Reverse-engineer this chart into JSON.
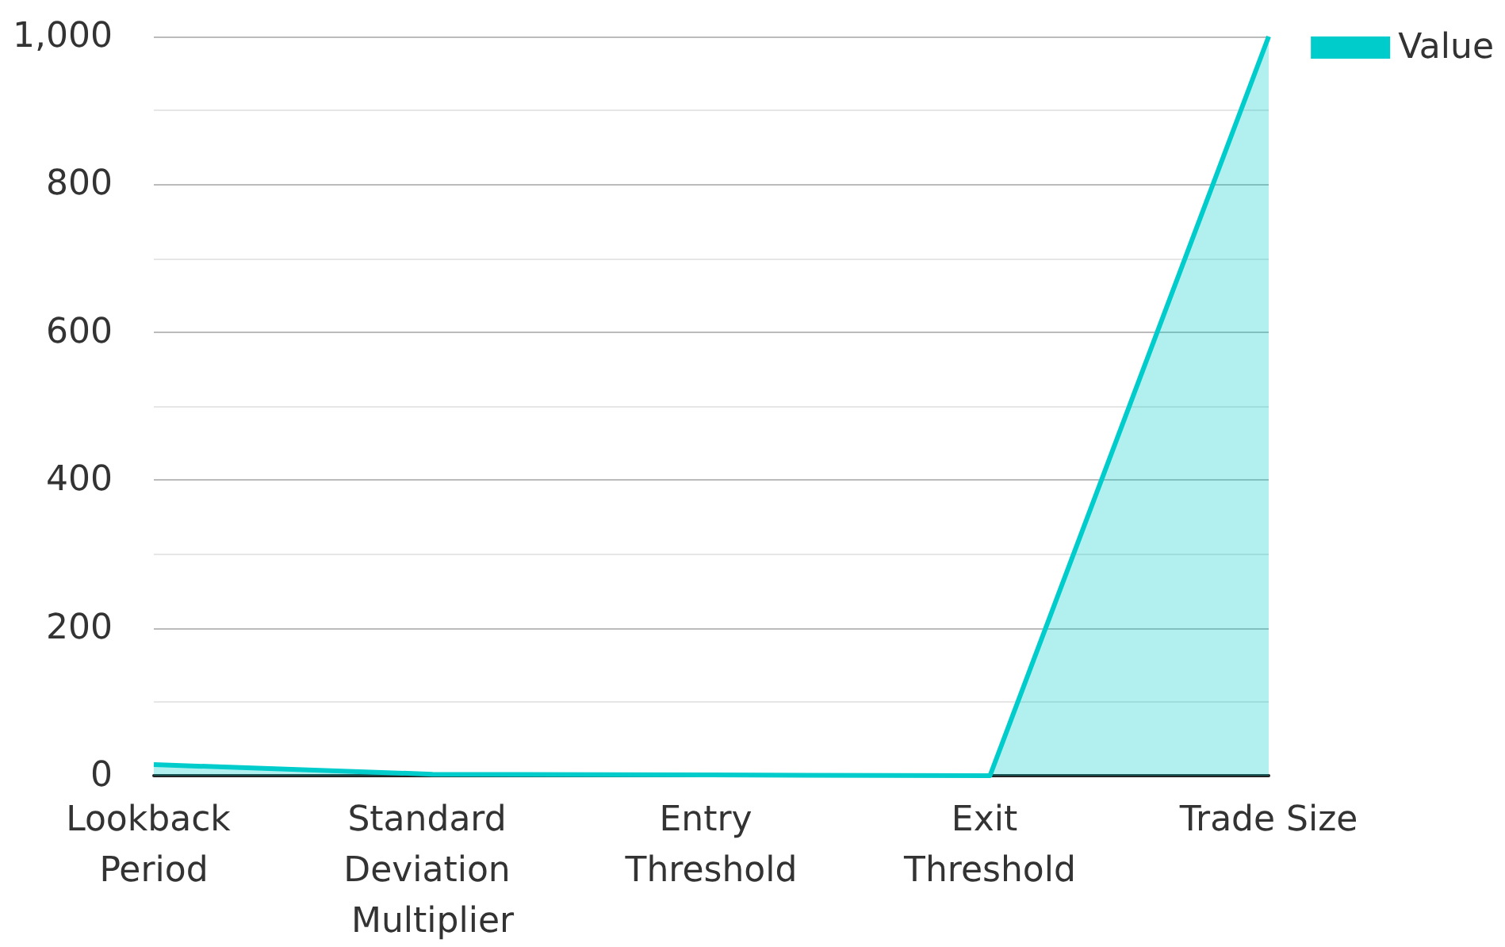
{
  "chart_data": {
    "type": "area",
    "categories": [
      "Lookback Period",
      "Standard Deviation Multiplier",
      "Entry Threshold",
      "Exit Threshold",
      "Trade Size"
    ],
    "series": [
      {
        "name": "Value",
        "color": "#00cccc",
        "values": [
          15,
          2,
          1,
          0,
          1000
        ]
      }
    ],
    "ylim": [
      0,
      1000
    ],
    "yticks": [
      0,
      {
        "value": 100,
        "label": null
      },
      200,
      {
        "value": 300,
        "label": null
      },
      400,
      {
        "value": 500,
        "label": null
      },
      600,
      {
        "value": 700,
        "label": null
      },
      800,
      {
        "value": 900,
        "label": null
      },
      {
        "value": 1000,
        "label": "1,000"
      }
    ],
    "grid": "y",
    "legend": "top right",
    "marker": "none"
  }
}
